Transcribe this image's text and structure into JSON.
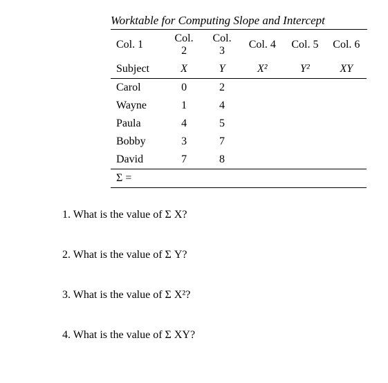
{
  "title": "Worktable for Computing Slope and Intercept",
  "headers": {
    "col1_top": "Col. 1",
    "col2_top": "Col. 2",
    "col3_top": "Col. 3",
    "col4_top": "Col. 4",
    "col5_top": "Col. 5",
    "col6_top": "Col. 6",
    "col1_sub": "Subject",
    "col2_sub": "X",
    "col3_sub": "Y",
    "col4_sub": "X²",
    "col5_sub": "Y²",
    "col6_sub": "XY"
  },
  "rows": [
    {
      "subject": "Carol",
      "x": "0",
      "y": "2"
    },
    {
      "subject": "Wayne",
      "x": "1",
      "y": "4"
    },
    {
      "subject": "Paula",
      "x": "4",
      "y": "5"
    },
    {
      "subject": "Bobby",
      "x": "3",
      "y": "7"
    },
    {
      "subject": "David",
      "x": "7",
      "y": "8"
    }
  ],
  "sigma_label": "Σ  =",
  "questions": {
    "q1": "1.  What is the value of Σ X?",
    "q2": "2.  What is the value of Σ Y?",
    "q3": "3.  What is the value of Σ X²?",
    "q4": "4.  What is the value of Σ XY?"
  }
}
